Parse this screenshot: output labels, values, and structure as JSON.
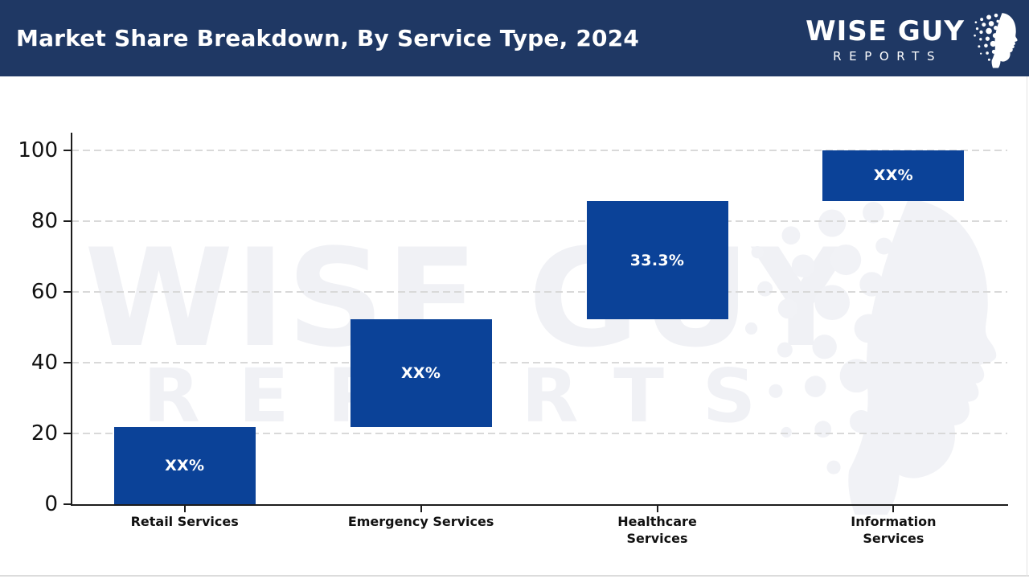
{
  "header": {
    "title": "Market Share Breakdown, By Service Type, 2024",
    "logo": {
      "line1": "WISE GUY",
      "line2": "REPORTS",
      "icon": "dot-face-profile-icon"
    }
  },
  "watermark": {
    "line1": "WISE GUY",
    "line2": "REPORTS"
  },
  "colors": {
    "header_bg": "#1f3864",
    "bar": "#0b4298",
    "bar_label": "#ffffff",
    "grid": "#d9d9d9",
    "axis": "#1c1c1c",
    "title_text": "#ffffff",
    "watermark": "#f0f1f5"
  },
  "chart_data": {
    "type": "bar",
    "subtype": "floating-segment-waterfall",
    "title": "Market Share Breakdown, By Service Type, 2024",
    "xlabel": "",
    "ylabel": "",
    "categories": [
      "Retail Services",
      "Emergency Services",
      "Healthcare\nServices",
      "Information\nServices"
    ],
    "segments": [
      {
        "category": "Retail Services",
        "start": 0,
        "end": 21.8,
        "value": 21.8,
        "label": "XX%"
      },
      {
        "category": "Emergency Services",
        "start": 21.8,
        "end": 52.2,
        "value": 30.4,
        "label": "XX%"
      },
      {
        "category": "Healthcare Services",
        "start": 52.2,
        "end": 85.5,
        "value": 33.3,
        "label": "33.3%"
      },
      {
        "category": "Information Services",
        "start": 85.5,
        "end": 100.0,
        "value": 14.5,
        "label": "XX%"
      }
    ],
    "yticks": [
      0,
      20,
      40,
      60,
      80,
      100
    ],
    "ylim": [
      0,
      105
    ],
    "grid": "dashed-horizontal",
    "legend": false
  }
}
